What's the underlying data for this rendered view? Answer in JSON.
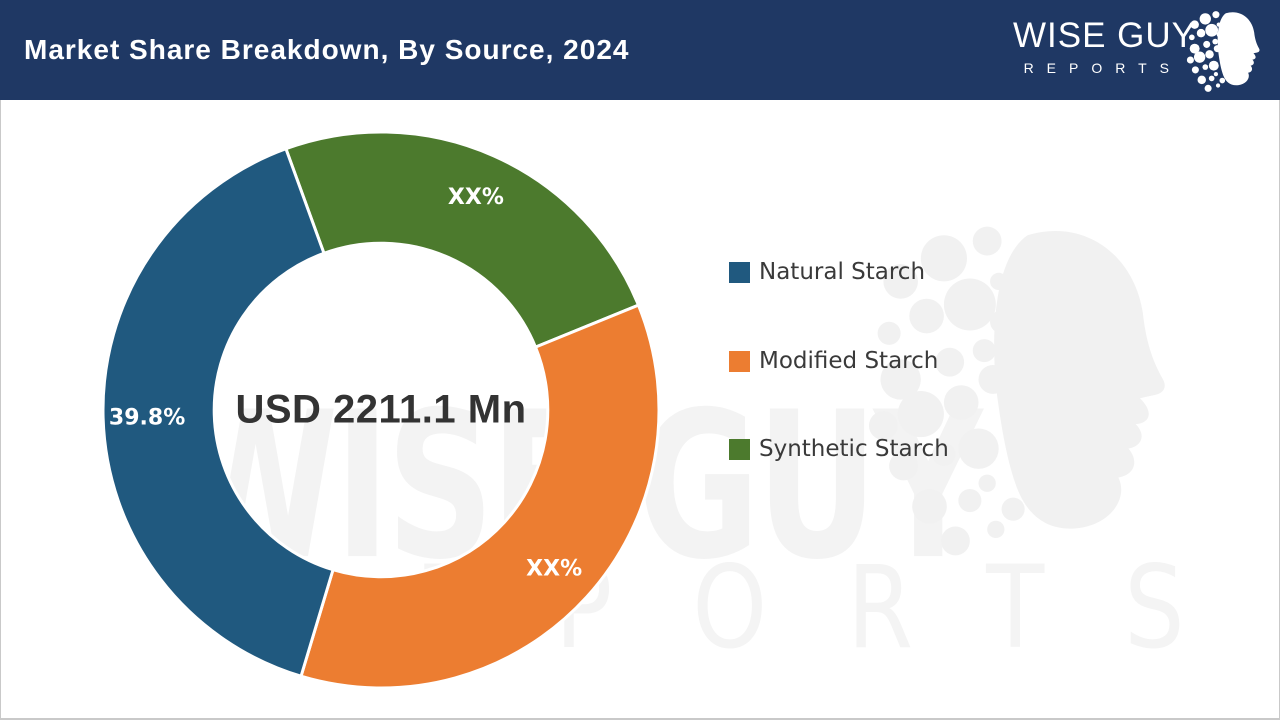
{
  "header": {
    "title": "Market Share Breakdown, By Source, 2024",
    "bg_color": "#1f3864",
    "logo": {
      "wordmark": "WISE GUY",
      "subtext": "REPORTS"
    }
  },
  "watermark": {
    "wordmark": "WISE GUY",
    "subtext": "REPORTS"
  },
  "chart_data": {
    "type": "pie",
    "subtype": "donut",
    "title": "Market Share Breakdown, By Source, 2024",
    "center_label": "USD 2211.1 Mn",
    "value_unit": "percent",
    "start_angle_deg": -20,
    "hole_radius_ratio": 0.6,
    "legend_position": "right",
    "slices": [
      {
        "name": "Natural Starch",
        "value": 39.8,
        "label": "39.8%",
        "color": "#20597f"
      },
      {
        "name": "Modified Starch",
        "value": 35.8,
        "label": "XX%",
        "color": "#ec7d31"
      },
      {
        "name": "Synthetic Starch",
        "value": 24.4,
        "label": "XX%",
        "color": "#4c7a2d"
      }
    ]
  }
}
